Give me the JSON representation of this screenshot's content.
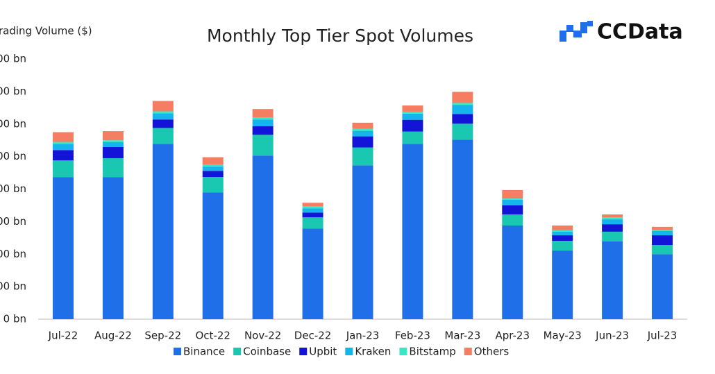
{
  "chart_data": {
    "type": "stacked-bar",
    "title": "Monthly Top Tier Spot Volumes",
    "y_label": "rading Volume ($)",
    "logo": "CCData",
    "categories": [
      "Jul-22",
      "Aug-22",
      "Sep-22",
      "Oct-22",
      "Nov-22",
      "Dec-22",
      "Jan-23",
      "Feb-23",
      "Mar-23",
      "Apr-23",
      "May-23",
      "Jun-23",
      "Jul-23"
    ],
    "series": [
      {
        "name": "Binance",
        "color": "#1f6fe8",
        "values": [
          437,
          437,
          539,
          390,
          503,
          279,
          473,
          539,
          552,
          288,
          211,
          239,
          200
        ]
      },
      {
        "name": "Coinbase",
        "color": "#1ac8b2",
        "values": [
          51,
          58,
          49,
          47,
          64,
          34,
          55,
          38,
          49,
          34,
          30,
          30,
          28
        ]
      },
      {
        "name": "Upbit",
        "color": "#1414d8",
        "values": [
          32,
          34,
          26,
          19,
          26,
          15,
          34,
          36,
          30,
          28,
          17,
          23,
          30
        ]
      },
      {
        "name": "Kraken",
        "color": "#14b4ec",
        "values": [
          19,
          15,
          19,
          13,
          21,
          13,
          17,
          19,
          28,
          17,
          11,
          15,
          13
        ]
      },
      {
        "name": "Bitstamp",
        "color": "#36e8c6",
        "values": [
          6,
          6,
          6,
          6,
          6,
          6,
          6,
          6,
          6,
          4,
          4,
          6,
          4
        ]
      },
      {
        "name": "Others",
        "color": "#f47d62",
        "values": [
          30,
          28,
          32,
          23,
          26,
          11,
          19,
          19,
          34,
          26,
          15,
          9,
          9
        ]
      }
    ],
    "ylim": [
      0,
      800
    ],
    "yticks": [
      {
        "value": 0,
        "label": "0 bn"
      },
      {
        "value": 100,
        "label": "00 bn"
      },
      {
        "value": 200,
        "label": "00 bn"
      },
      {
        "value": 300,
        "label": "00 bn"
      },
      {
        "value": 400,
        "label": "00 bn"
      },
      {
        "value": 500,
        "label": "00 bn"
      },
      {
        "value": 600,
        "label": "00 bn"
      },
      {
        "value": 700,
        "label": "00 bn"
      },
      {
        "value": 800,
        "label": "00 bn"
      }
    ],
    "grid": false,
    "legend": "bottom"
  }
}
